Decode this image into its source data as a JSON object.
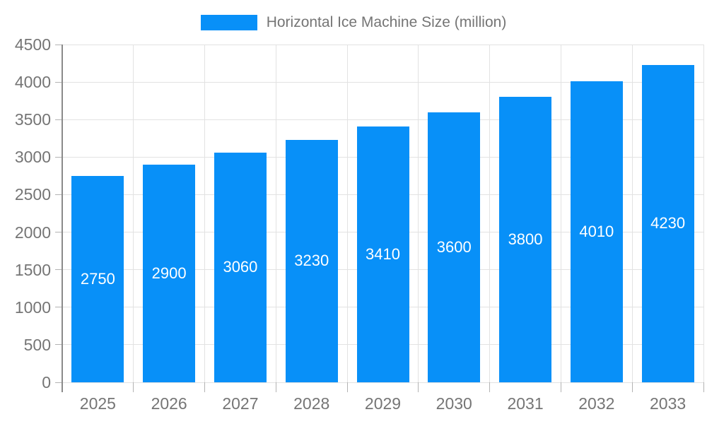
{
  "chart_data": {
    "type": "bar",
    "title": "",
    "legend": {
      "label": "Horizontal Ice Machine Size (million)",
      "position": "top"
    },
    "categories": [
      "2025",
      "2026",
      "2027",
      "2028",
      "2029",
      "2030",
      "2031",
      "2032",
      "2033"
    ],
    "values": [
      2750,
      2900,
      3060,
      3230,
      3410,
      3600,
      3800,
      4010,
      4230
    ],
    "series": [
      {
        "name": "Horizontal Ice Machine Size (million)",
        "values": [
          2750,
          2900,
          3060,
          3230,
          3410,
          3600,
          3800,
          4010,
          4230
        ]
      }
    ],
    "xlabel": "",
    "ylabel": "",
    "ylim": [
      0,
      4500
    ],
    "yticks": [
      0,
      500,
      1000,
      1500,
      2000,
      2500,
      3000,
      3500,
      4000,
      4500
    ],
    "grid": true,
    "value_labels_inside_bars": true,
    "colors": {
      "bar": "#0890f8",
      "bar_value_label": "#ffffff",
      "axis_text": "#757575",
      "gridline": "#e2e2e2",
      "axis_line": "#8a8a8a",
      "tick": "#b3b3b3",
      "background": "#ffffff"
    }
  }
}
